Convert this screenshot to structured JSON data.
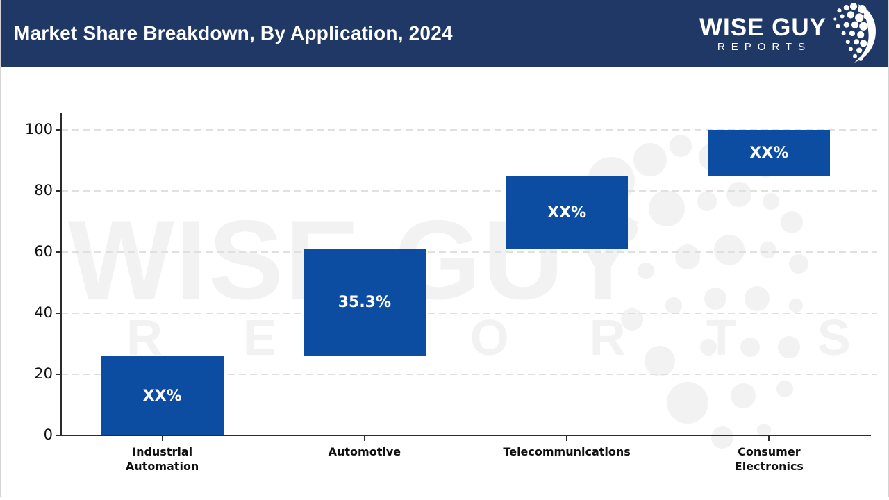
{
  "header": {
    "title": "Market Share Breakdown, By Application, 2024",
    "bg_color": "#1f3866",
    "logo": {
      "line1": "WISE GUY",
      "line2": "REPORTS"
    }
  },
  "watermark": {
    "line1": "WISE GUY",
    "line2": "R E P O R T S"
  },
  "chart_data": {
    "type": "bar",
    "subtype": "floating-waterfall",
    "title": "Market Share Breakdown, By Application, 2024",
    "categories": [
      "Industrial Automation",
      "Automotive",
      "Telecommunications",
      "Consumer Electronics"
    ],
    "category_label_lines": [
      [
        "Industrial",
        "Automation"
      ],
      [
        "Automotive"
      ],
      [
        "Telecommunications"
      ],
      [
        "Consumer",
        "Electronics"
      ]
    ],
    "segments": [
      {
        "category": "Industrial Automation",
        "start": 0,
        "end": 25.8,
        "label": "XX%"
      },
      {
        "category": "Automotive",
        "start": 25.8,
        "end": 61.1,
        "label": "35.3%"
      },
      {
        "category": "Telecommunications",
        "start": 61.1,
        "end": 84.8,
        "label": "XX%"
      },
      {
        "category": "Consumer Electronics",
        "start": 84.8,
        "end": 100,
        "label": "XX%"
      }
    ],
    "ylim": [
      0,
      100
    ],
    "yticks": [
      0,
      20,
      40,
      60,
      80,
      100
    ],
    "xlabel": "",
    "ylabel": "",
    "grid": "horizontal-dashed",
    "legend": "none",
    "bar_color": "#0c4da2",
    "bar_label_color": "#ffffff"
  }
}
